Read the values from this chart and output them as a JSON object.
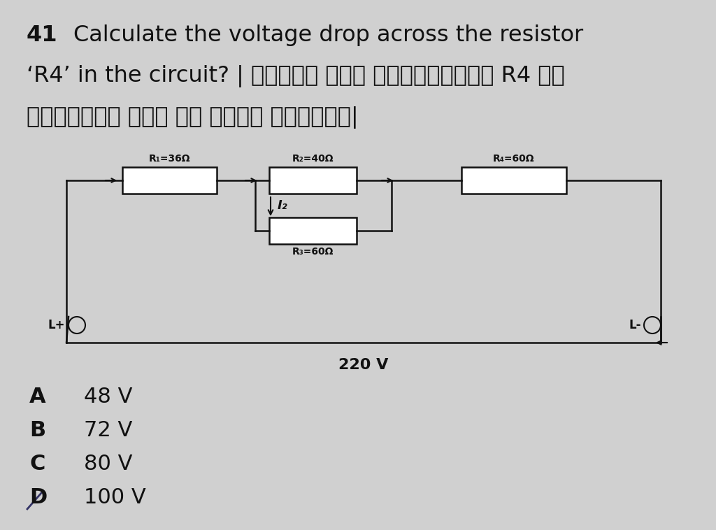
{
  "bg_color": "#d0d0d0",
  "title_line1_en": "41     Calculate the voltage drop across the resistor",
  "title_line2_mixed": "‘R4’ in the circuit? | परिपथ में प्रतिरोधक R4 पर",
  "title_line3_hi": "वोल्टेज पात की गणना कीजिये|",
  "options": [
    {
      "label": "A",
      "value": "48 V",
      "mark": false
    },
    {
      "label": "B",
      "value": "72 V",
      "mark": false
    },
    {
      "label": "C",
      "value": "80 V",
      "mark": false
    },
    {
      "label": "D",
      "value": "100 V",
      "mark": true
    }
  ],
  "circuit": {
    "R1_label": "R₁=36Ω",
    "R2_label": "R₂=40Ω",
    "R3_label": "R₃=60Ω",
    "R4_label": "R₄=60Ω",
    "voltage_label": "220 V",
    "I2_label": "I₂",
    "Lplus_label": "L+",
    "Lminus_label": "L-"
  },
  "line_color": "#111111",
  "text_color": "#111111",
  "title_fontsize": 23,
  "label_fontsize": 10,
  "options_fontsize": 22
}
